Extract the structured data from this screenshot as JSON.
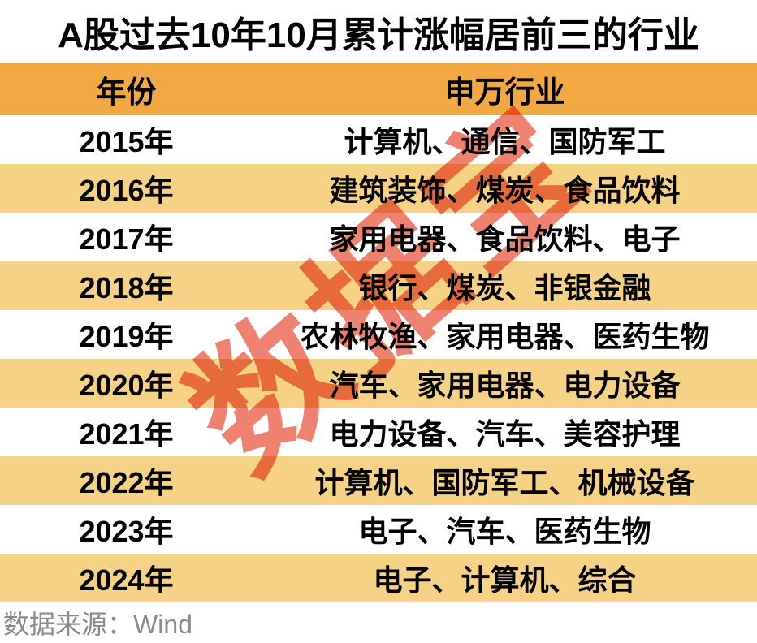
{
  "chart_data": {
    "type": "table",
    "title": "A股过去10年10月累计涨幅居前三的行业",
    "columns": {
      "year": "年份",
      "industry": "申万行业"
    },
    "rows": [
      {
        "year": "2015年",
        "industries": "计算机、通信、国防军工"
      },
      {
        "year": "2016年",
        "industries": "建筑装饰、煤炭、食品饮料"
      },
      {
        "year": "2017年",
        "industries": "家用电器、食品饮料、电子"
      },
      {
        "year": "2018年",
        "industries": "银行、煤炭、非银金融"
      },
      {
        "year": "2019年",
        "industries": "农林牧渔、家用电器、医药生物"
      },
      {
        "year": "2020年",
        "industries": "汽车、家用电器、电力设备"
      },
      {
        "year": "2021年",
        "industries": "电力设备、汽车、美容护理"
      },
      {
        "year": "2022年",
        "industries": "计算机、国防军工、机械设备"
      },
      {
        "year": "2023年",
        "industries": "电子、汽车、医药生物"
      },
      {
        "year": "2024年",
        "industries": "电子、计算机、综合"
      }
    ],
    "watermark": "数据宝",
    "footer": "数据来源：Wind",
    "layout_hints": {
      "zebra_striping": "odd rows white, even rows orange",
      "legend_position": "none",
      "grid": "column divider only"
    }
  },
  "colors": {
    "header_bg": "#F2A943",
    "stripe_bg": "#F6D287",
    "watermark": "#EF8170",
    "divider": "#D7D7D7",
    "footer_text": "#8A8A8A",
    "title_text": "#000000"
  }
}
